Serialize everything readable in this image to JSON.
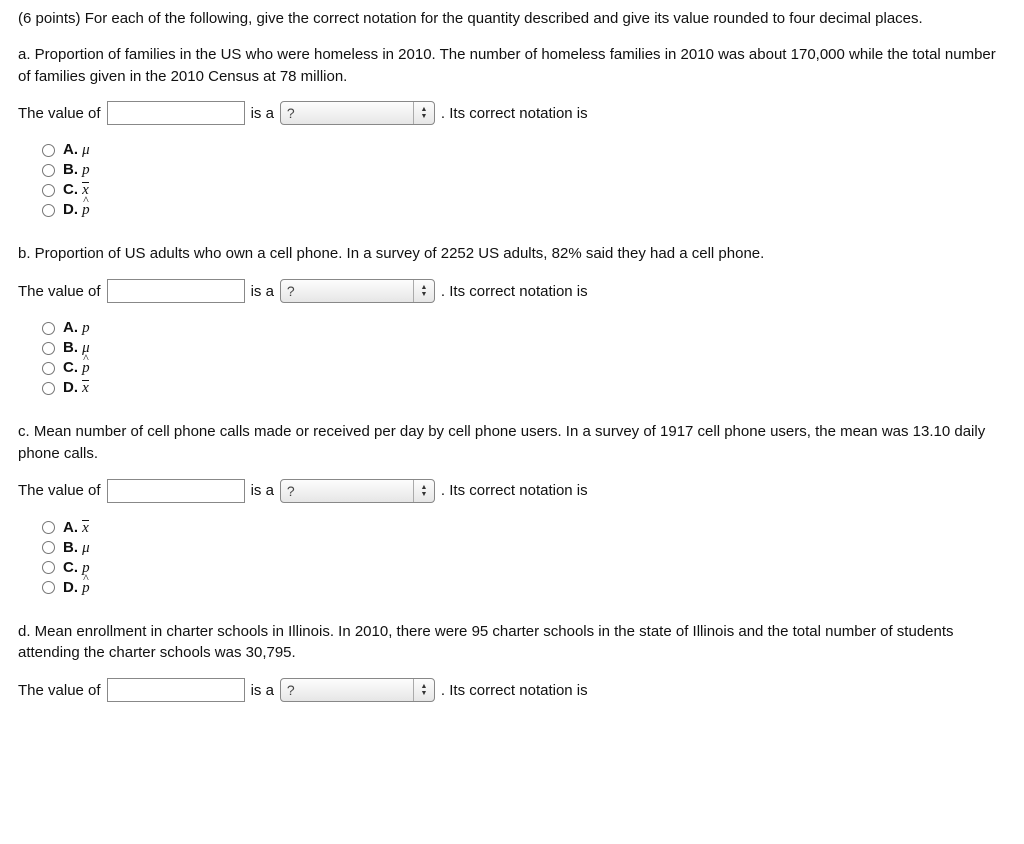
{
  "intro": "(6 points) For each of the following, give the correct notation for the quantity described and give its value rounded to four decimal places.",
  "parts": {
    "a": {
      "prompt": "a. Proportion of families in the US who were homeless in 2010. The number of homeless families in 2010 was about 170,000 while the total number of families given in the 2010 Census at 78 million.",
      "row_pre": "The value of",
      "row_mid": "is a",
      "select_placeholder": "?",
      "row_post": ". Its correct notation is",
      "options": [
        {
          "letter": "A.",
          "symbol": "mu"
        },
        {
          "letter": "B.",
          "symbol": "p"
        },
        {
          "letter": "C.",
          "symbol": "xbar"
        },
        {
          "letter": "D.",
          "symbol": "phat"
        }
      ]
    },
    "b": {
      "prompt": "b. Proportion of US adults who own a cell phone. In a survey of 2252 US adults, 82% said they had a cell phone.",
      "row_pre": "The value of",
      "row_mid": "is a",
      "select_placeholder": "?",
      "row_post": ". Its correct notation is",
      "options": [
        {
          "letter": "A.",
          "symbol": "p"
        },
        {
          "letter": "B.",
          "symbol": "mu"
        },
        {
          "letter": "C.",
          "symbol": "phat"
        },
        {
          "letter": "D.",
          "symbol": "xbar"
        }
      ]
    },
    "c": {
      "prompt": "c. Mean number of cell phone calls made or received per day by cell phone users. In a survey of 1917 cell phone users, the mean was 13.10 daily phone calls.",
      "row_pre": "The value of",
      "row_mid": "is a",
      "select_placeholder": "?",
      "row_post": ". Its correct notation is",
      "options": [
        {
          "letter": "A.",
          "symbol": "xbar"
        },
        {
          "letter": "B.",
          "symbol": "mu"
        },
        {
          "letter": "C.",
          "symbol": "p"
        },
        {
          "letter": "D.",
          "symbol": "phat"
        }
      ]
    },
    "d": {
      "prompt": "d. Mean enrollment in charter schools in Illinois. In 2010, there were 95 charter schools in the state of Illinois and the total number of students attending the charter schools was 30,795.",
      "row_pre": "The value of",
      "row_mid": "is a",
      "select_placeholder": "?",
      "row_post": ". Its correct notation is"
    }
  }
}
